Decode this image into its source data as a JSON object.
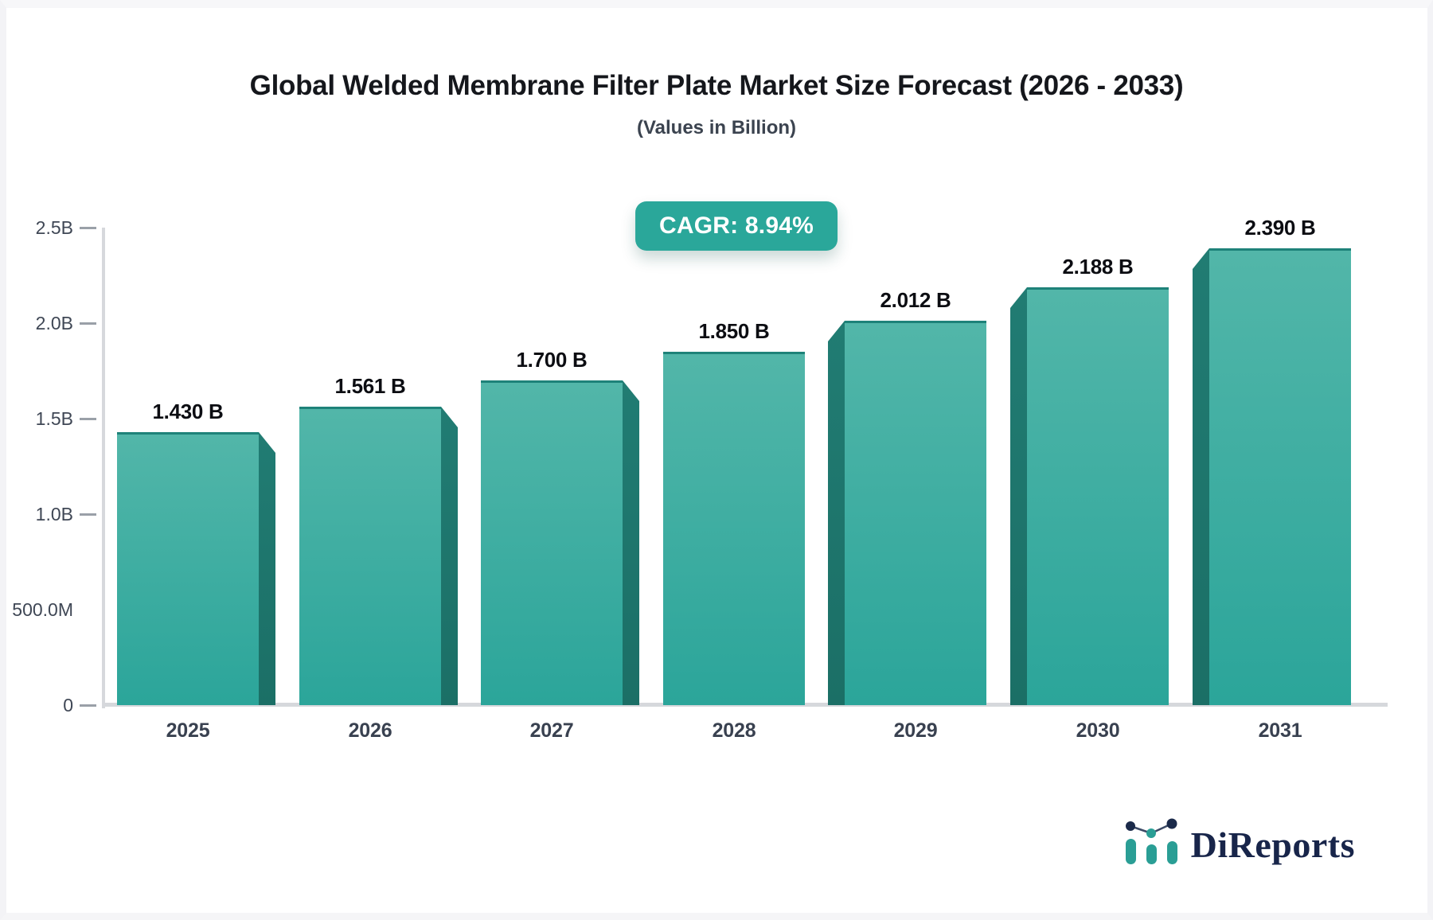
{
  "chart_data": {
    "type": "bar",
    "title": "Global Welded Membrane Filter Plate Market Size Forecast (2026 - 2033)",
    "subtitle": "(Values in Billion)",
    "badge_label": "CAGR: 8.94%",
    "categories": [
      "2025",
      "2026",
      "2027",
      "2028",
      "2029",
      "2030",
      "2031"
    ],
    "values": [
      1.43,
      1.561,
      1.7,
      1.85,
      2.012,
      2.188,
      2.39
    ],
    "bar_labels": [
      "1.430 B",
      "1.561 B",
      "1.700 B",
      "1.850 B",
      "2.012 B",
      "2.188 B",
      "2.390 B"
    ],
    "unit": "Billion",
    "ylim": [
      0,
      2.5
    ],
    "yticks": [
      {
        "label": "2.5B",
        "value": 2.5,
        "tick_dash": true
      },
      {
        "label": "2.0B",
        "value": 2.0,
        "tick_dash": true
      },
      {
        "label": "1.5B",
        "value": 1.5,
        "tick_dash": true
      },
      {
        "label": "1.0B",
        "value": 1.0,
        "tick_dash": true
      },
      {
        "label": "500.0M",
        "value": 0.5,
        "tick_dash": false
      },
      {
        "label": "0",
        "value": 0,
        "tick_dash": true
      }
    ],
    "grid": false,
    "legend": false,
    "colors": {
      "bar_face_top": "#52b6a9",
      "bar_face_bottom": "#2ba59a",
      "bar_top_edge": "#1e8279",
      "bar_side": "#1e7a71",
      "axis_line": "#d6d8dc",
      "tick_dash": "#9aa0a8",
      "badge_bg": "#2aa79a",
      "badge_text": "#ffffff",
      "title_text": "#15171c",
      "subtitle_text": "#3b434f",
      "axis_label": "#3f4755",
      "bar_label": "#0c0d12",
      "logo_text": "#18254a",
      "logo_teal": "#2a9e95"
    }
  },
  "branding": {
    "logo_text": "DiReports",
    "logo_icon": "mini-bar-chart-icon"
  }
}
